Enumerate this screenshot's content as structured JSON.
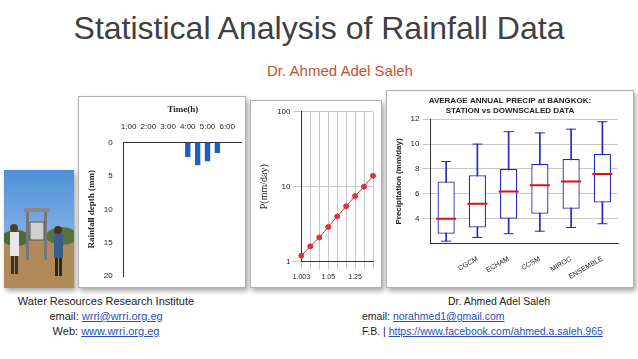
{
  "title": "Statistical Analysis of Rainfall Data",
  "subtitle": "Dr. Ahmed Adel Saleh",
  "footer_left": [
    {
      "text": "Water Resources Research Institute"
    },
    {
      "label": "email:",
      "link": "wrri@wrri.org.eg"
    },
    {
      "label": "Web:",
      "link": "www.wrri.org.eg"
    }
  ],
  "footer_right": [
    {
      "text": "Dr. Ahmed Adel Saleh"
    },
    {
      "label": "email:",
      "link": "norahmed1@gmail.com"
    },
    {
      "label": "F.B. |",
      "link": "https://www.facebook.com/ahmed.a.saleh.965"
    }
  ],
  "chart_data": [
    {
      "type": "bar",
      "x_label": "Time(h)",
      "y_label": "Rainfall depth (mm)",
      "categories": [
        "1:00",
        null,
        "2:00",
        null,
        "3:00",
        null,
        "4:00",
        null,
        "5:00",
        null,
        "6:00",
        null
      ],
      "values": [
        0,
        0,
        0,
        0,
        0,
        0,
        2.2,
        3.4,
        2.8,
        1.6,
        0,
        0
      ],
      "color": "#1f5fbf",
      "ylim": [
        0,
        20
      ],
      "yticks": [
        0,
        5,
        10,
        15,
        20
      ],
      "grid": false
    },
    {
      "type": "line",
      "y_label": "P(mm/day)",
      "categories": [
        "1.003",
        null,
        null,
        "1.05",
        null,
        null,
        "1.25",
        null,
        null
      ],
      "values": [
        1.2,
        1.6,
        2.1,
        2.9,
        4,
        5.5,
        7.5,
        10,
        14
      ],
      "color": "#e0303a",
      "marker": "circle",
      "log": "y",
      "ylim": [
        1,
        100
      ],
      "yticks": [
        1,
        10,
        100
      ],
      "grid": true
    },
    {
      "type": "box",
      "title": "AVERAGE ANNUAL PRECIP at BANGKOK: STATION vs DOWNSCALED DATA",
      "y_label": "Precipitation (mm/day)",
      "categories": [
        null,
        "CGCM",
        "ECHAM",
        "CCSM",
        "MIROC",
        "ENSEMBLE"
      ],
      "min": [
        2.2,
        2.5,
        2.8,
        3.0,
        3.3,
        3.6
      ],
      "q1": [
        2.8,
        3.3,
        4.0,
        4.4,
        4.8,
        5.3
      ],
      "median": [
        4.0,
        5.2,
        6.2,
        6.7,
        7.0,
        7.6
      ],
      "q3": [
        7.0,
        7.5,
        8.0,
        8.4,
        8.8,
        9.2
      ],
      "max": [
        8.6,
        10.0,
        11.0,
        10.9,
        11.2,
        11.8
      ],
      "color": "#2626c8",
      "ylim": [
        2,
        12
      ],
      "yticks": [
        4,
        6,
        8,
        10,
        12
      ],
      "grid": true
    }
  ]
}
